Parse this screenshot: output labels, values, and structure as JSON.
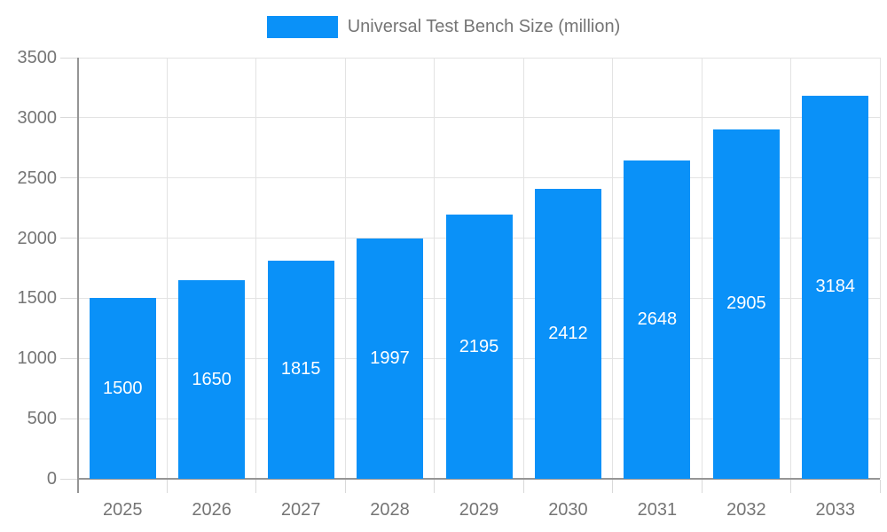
{
  "chart_data": {
    "type": "bar",
    "title": "Universal Test Bench Size (million)",
    "legend": {
      "position": "top",
      "entries": [
        "Universal Test Bench Size (million)"
      ]
    },
    "categories": [
      "2025",
      "2026",
      "2027",
      "2028",
      "2029",
      "2030",
      "2031",
      "2032",
      "2033"
    ],
    "series": [
      {
        "name": "Universal Test Bench Size (million)",
        "values": [
          1500,
          1650,
          1815,
          1997,
          2195,
          2412,
          2648,
          2905,
          3184
        ]
      }
    ],
    "value_labels": [
      "1500",
      "1650",
      "1815",
      "1997",
      "2195",
      "2412",
      "2648",
      "2905",
      "3184"
    ],
    "xlabel": "",
    "ylabel": "",
    "ylim": [
      0,
      3500
    ],
    "ytick_step": 500,
    "yticks": [
      "0",
      "500",
      "1000",
      "1500",
      "2000",
      "2500",
      "3000",
      "3500"
    ],
    "grid": true,
    "colors": {
      "bar": "#0a91f8",
      "bar_label": "#ffffff",
      "grid_line": "#e3e3e3",
      "axis_line": "#959595",
      "tick_line": "#d9d9d9",
      "axis_text": "#757575",
      "background": "#ffffff"
    }
  }
}
